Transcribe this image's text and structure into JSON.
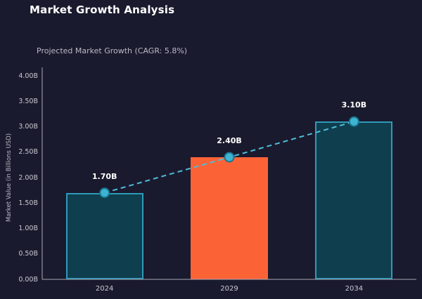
{
  "header": {
    "title": "Market Growth Analysis"
  },
  "chart_data": {
    "type": "bar",
    "title": "Projected Market Growth (CAGR: 5.8%)",
    "categories": [
      "2024",
      "2029",
      "2034"
    ],
    "values": [
      1.7,
      2.4,
      3.1
    ],
    "value_labels": [
      "1.70B",
      "2.40B",
      "3.10B"
    ],
    "bar_colors": [
      "#0f3e4e",
      "#fb6337",
      "#0f3e4e"
    ],
    "bar_border_colors": [
      "#2e9ab8",
      "#fb6337",
      "#2e9ab8"
    ],
    "xlabel": "",
    "ylabel": "Market Value (in Billions USD)",
    "ylim": [
      0,
      4
    ],
    "yticks": [
      0,
      0.5,
      1,
      1.5,
      2,
      2.5,
      3,
      3.5,
      4
    ],
    "ytick_labels": [
      "0.00B",
      "0.50B",
      "1.00B",
      "1.50B",
      "2.00B",
      "2.50B",
      "3.00B",
      "3.50B",
      "4.00B"
    ],
    "grid": false,
    "legend": "none",
    "trend_line": {
      "style": "dashed",
      "color": "#4dbdd8",
      "values": [
        1.7,
        2.4,
        3.1
      ]
    },
    "colors": {
      "background": "#1a1a2e",
      "title": "#ffffff",
      "subtitle": "#b9b9c6",
      "tick": "#c9c9d2",
      "axis": "#a8a8b4",
      "marker_fill": "#3cb4d2",
      "marker_edge": "#19758f",
      "value_label": "#ffffff"
    }
  }
}
